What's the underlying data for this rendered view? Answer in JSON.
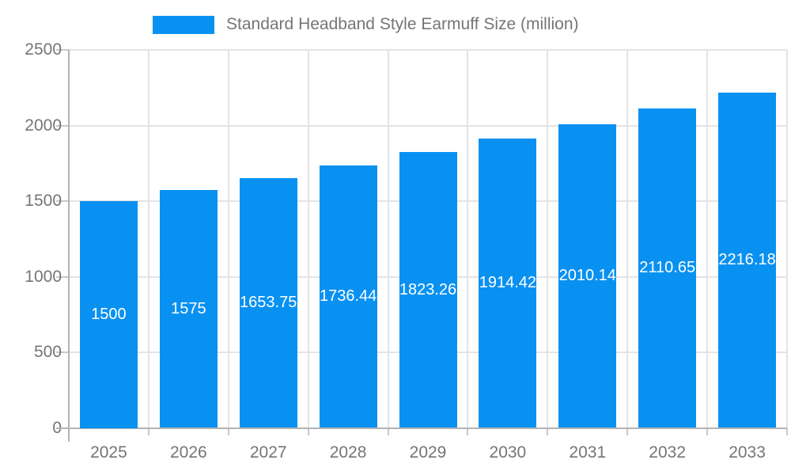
{
  "legend": {
    "label": "Standard Headband Style Earmuff Size (million)"
  },
  "chart_data": {
    "type": "bar",
    "title": "Standard Headband Style Earmuff Size (million)",
    "categories": [
      "2025",
      "2026",
      "2027",
      "2028",
      "2029",
      "2030",
      "2031",
      "2032",
      "2033"
    ],
    "values": [
      1500,
      1575,
      1653.75,
      1736.44,
      1823.26,
      1914.42,
      2010.14,
      2110.65,
      2216.18
    ],
    "bar_labels": [
      "1500",
      "1575",
      "1653.75",
      "1736.44",
      "1823.26",
      "1914.42",
      "2010.14",
      "2110.65",
      "2216.18"
    ],
    "xlabel": "",
    "ylabel": "",
    "ylim": [
      0,
      2500
    ],
    "yticks": [
      0,
      500,
      1000,
      1500,
      2000,
      2500
    ],
    "grid": true,
    "legend_position": "top-center",
    "colors": {
      "bar": "#0991f2",
      "grid": "#e4e4e4",
      "axis": "#b3b3b3",
      "tick": "#c9c9c9",
      "label_text": "#757575",
      "bar_label_text": "#ffffff",
      "background": "#ffffff"
    }
  }
}
